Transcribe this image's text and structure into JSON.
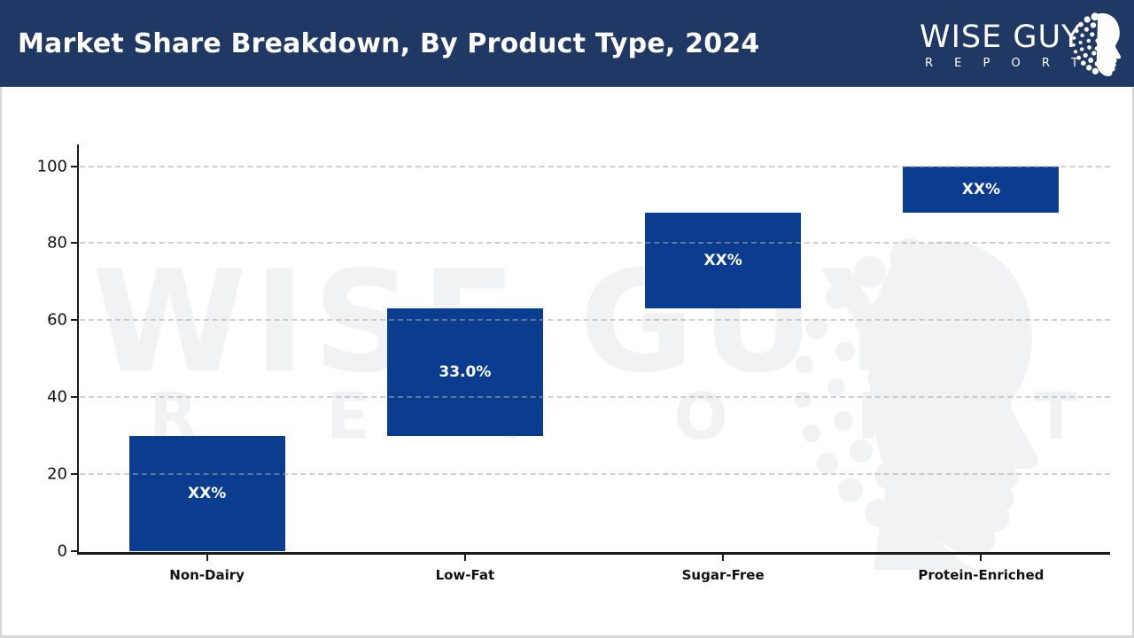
{
  "header": {
    "title": "Market Share Breakdown, By Product Type, 2024",
    "logo": {
      "line1": "WISE GUY",
      "line2": "R E P O R T S"
    }
  },
  "watermark": {
    "line1": "WISE GUY",
    "line2": "R E P O R T S"
  },
  "chart_data": {
    "type": "bar",
    "variant": "floating-waterfall",
    "title": "Market Share Breakdown, By Product Type, 2024",
    "categories": [
      "Non-Dairy",
      "Low-Fat",
      "Sugar-Free",
      "Protein-Enriched"
    ],
    "segments": [
      {
        "category": "Non-Dairy",
        "start": 0,
        "end": 30,
        "label": "XX%"
      },
      {
        "category": "Low-Fat",
        "start": 30,
        "end": 63,
        "label": "33.0%"
      },
      {
        "category": "Sugar-Free",
        "start": 63,
        "end": 88,
        "label": "XX%"
      },
      {
        "category": "Protein-Enriched",
        "start": 88,
        "end": 100,
        "label": "XX%"
      }
    ],
    "yticks": [
      0,
      20,
      40,
      60,
      80,
      100
    ],
    "ylim": [
      0,
      106
    ],
    "grid": true,
    "grid_style": "dashed",
    "legend": null
  },
  "colors": {
    "header_bg": "#203864",
    "header_text": "#ffffff",
    "bar": "#0a3d8f",
    "bar_label": "#ffffff",
    "axis": "#1a1a1a",
    "watermark": "#f1f2f4",
    "frame_border": "#d7d7d7",
    "background": "#ffffff"
  }
}
